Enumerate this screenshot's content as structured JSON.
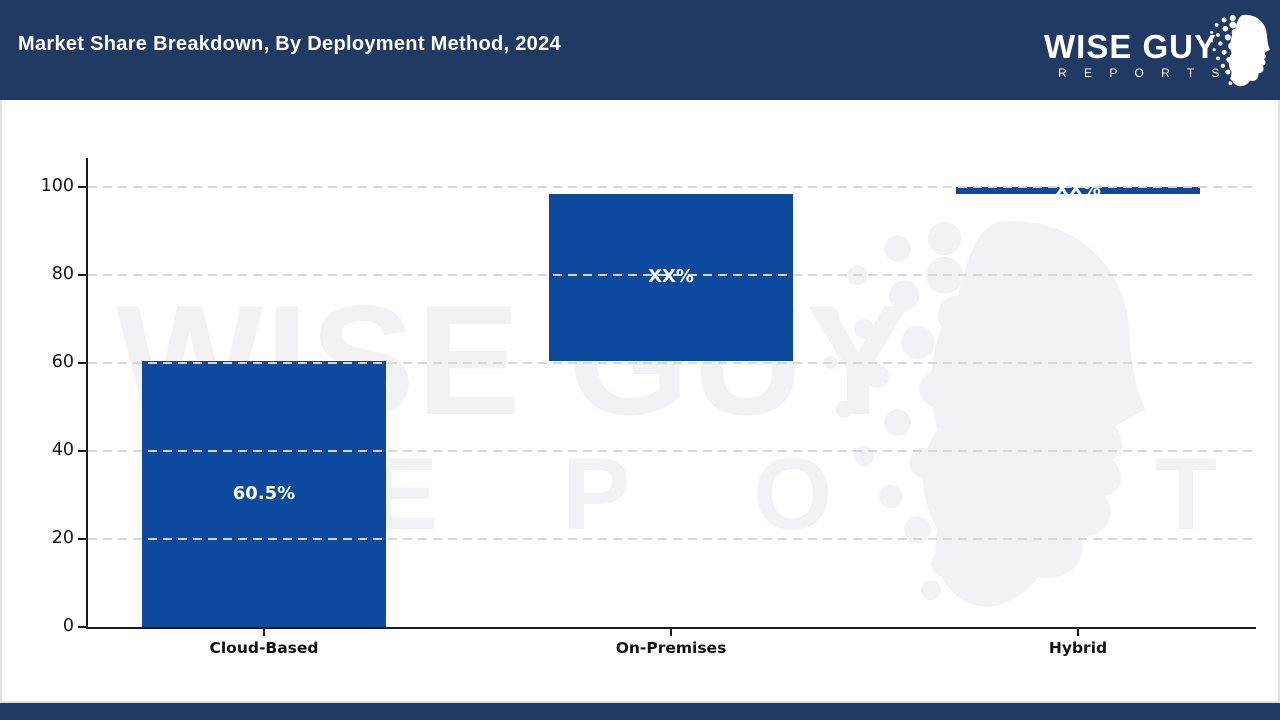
{
  "header": {
    "title": "Market Share Breakdown, By Deployment Method, 2024",
    "logo": {
      "brand": "WISE GUY",
      "sub": "R E P O R T S"
    }
  },
  "watermark": {
    "brand": "WISE GUY",
    "sub": "R E P O R T S"
  },
  "chart_data": {
    "type": "bar",
    "subtype": "waterfall",
    "title": "Market Share Breakdown, By Deployment Method, 2024",
    "categories": [
      "Cloud-Based",
      "On-Premises",
      "Hybrid"
    ],
    "bars": [
      {
        "category": "Cloud-Based",
        "start": 0,
        "end": 60.5,
        "label": "60.5%"
      },
      {
        "category": "On-Premises",
        "start": 60.5,
        "end": 98.5,
        "label": "XX%"
      },
      {
        "category": "Hybrid",
        "start": 98.5,
        "end": 100,
        "label": "XX%"
      }
    ],
    "yticks": [
      0,
      20,
      40,
      60,
      80,
      100
    ],
    "ylim": [
      0,
      106
    ],
    "xlabel": "",
    "ylabel": "",
    "grid": "horizontal-dashed",
    "legend": "none"
  },
  "colors": {
    "header_bg": "#213a64",
    "footer_bg": "#213a64",
    "bar": "#0b4a9f",
    "grid": "#d8d8d8",
    "axis": "#1a1a1a",
    "bar_label": "#ffffff",
    "watermark": "#f2f2f4",
    "header_text": "#ffffff"
  }
}
